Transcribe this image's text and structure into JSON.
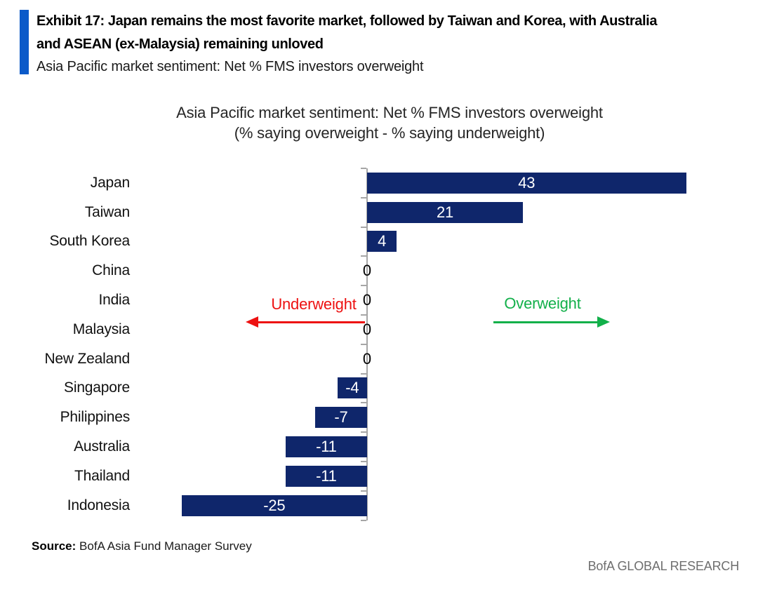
{
  "header": {
    "title_lines": [
      "Exhibit 17: Japan remains the most favorite market, followed by Taiwan and Korea, with Australia",
      "and ASEAN (ex-Malaysia) remaining unloved"
    ],
    "subtitle": "Asia Pacific market sentiment: Net % FMS investors overweight",
    "accent_color": "#0b5ac9"
  },
  "chart_data": {
    "type": "bar",
    "orientation": "horizontal",
    "title_lines": [
      "Asia Pacific market sentiment: Net % FMS investors overweight",
      "(% saying overweight - % saying underweight)"
    ],
    "categories": [
      "Japan",
      "Taiwan",
      "South Korea",
      "China",
      "India",
      "Malaysia",
      "New Zealand",
      "Singapore",
      "Philippines",
      "Australia",
      "Thailand",
      "Indonesia"
    ],
    "values": [
      43,
      21,
      4,
      0,
      0,
      0,
      0,
      -4,
      -7,
      -11,
      -11,
      -25
    ],
    "xlim": [
      -30,
      52
    ],
    "gridlines": false,
    "bar_color": "#0f266b",
    "value_label_color": "#ffffff",
    "zero_label_color": "#000000",
    "axis_color": "#a6a6a6",
    "annotations": [
      {
        "label": "Underweight",
        "color": "#ed1111",
        "direction": "left"
      },
      {
        "label": "Overweight",
        "color": "#12b04a",
        "direction": "right"
      }
    ]
  },
  "footer": {
    "source_label": "Source:",
    "source_text": "BofA Asia Fund Manager Survey",
    "brand": "BofA GLOBAL RESEARCH"
  }
}
